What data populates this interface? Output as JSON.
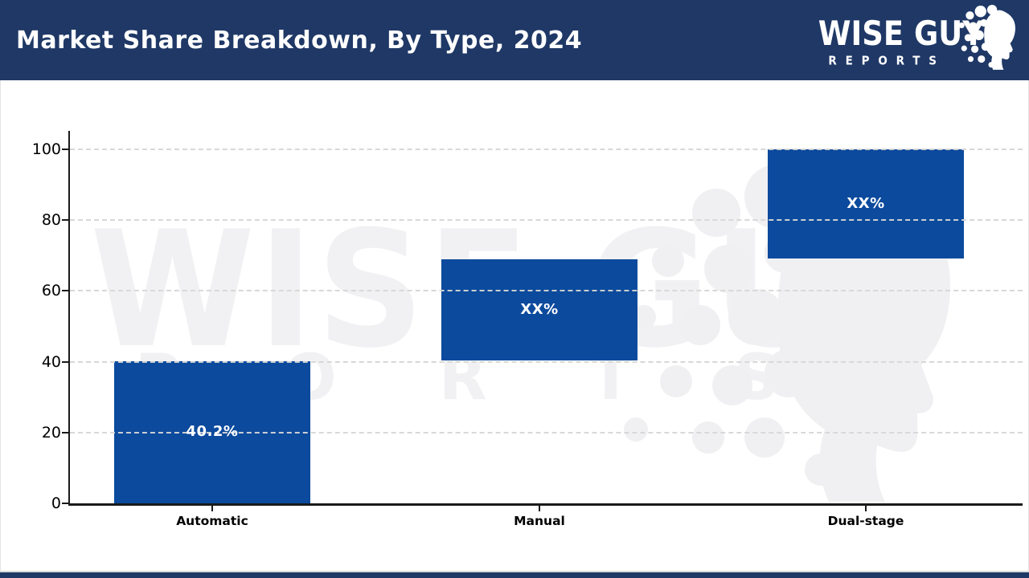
{
  "header": {
    "title": "Market Share Breakdown, By Type, 2024",
    "bg_color": "#1f3866",
    "logo": {
      "line1": "WISE GUY",
      "line2": "R E P O R T S"
    }
  },
  "watermark": {
    "line1": "WISE GUY",
    "line2": "P O R T S"
  },
  "chart_data": {
    "type": "bar",
    "subtype": "floating_stacked_segments",
    "title": "Market Share Breakdown, By Type, 2024",
    "categories": [
      "Automatic",
      "Manual",
      "Dual-stage"
    ],
    "segments": [
      {
        "category": "Automatic",
        "start": 0,
        "end": 40.2,
        "label": "40.2%"
      },
      {
        "category": "Manual",
        "start": 40.4,
        "end": 69,
        "label": "XX%"
      },
      {
        "category": "Dual-stage",
        "start": 69.2,
        "end": 100,
        "label": "XX%"
      }
    ],
    "xlabel": "",
    "ylabel": "",
    "ylim": [
      0,
      100
    ],
    "yticks": [
      0,
      20,
      40,
      60,
      80,
      100
    ],
    "grid": {
      "horizontal": true,
      "style": "dashed",
      "color": "#d6d6d6"
    },
    "legend": null,
    "bar_color": "#0c4a9d",
    "bar_label_color": "#ffffff",
    "axis_color": "#1a1a1a"
  },
  "footer": {
    "bar_color": "#1f3866"
  }
}
